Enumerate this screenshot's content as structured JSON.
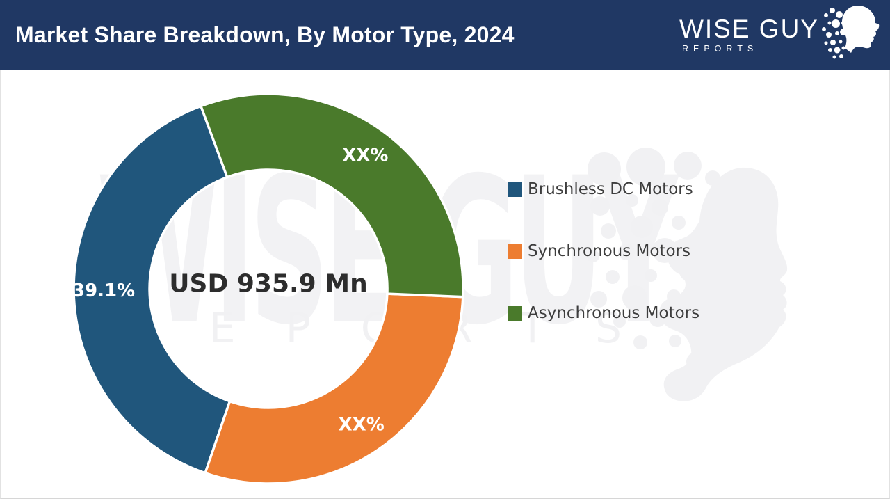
{
  "header": {
    "title": "Market Share Breakdown, By Motor Type, 2024",
    "logo": {
      "wordmark": "WISE GUY",
      "subtext": "REPORTS"
    }
  },
  "watermark": {
    "line1": "WISE GUY",
    "line2": "REPORTS"
  },
  "chart_data": {
    "type": "pie",
    "donut": true,
    "title": "Market Share Breakdown, By Motor Type, 2024",
    "center_label": "USD 935.9 Mn",
    "start_angle_deg": 110.3,
    "direction": "counterclockwise",
    "inner_radius_ratio": 0.61,
    "legend_position": "right",
    "segments": [
      {
        "label": "Brushless DC Motors",
        "value_pct": 39.1,
        "data_label": "39.1%",
        "color": "#20567C"
      },
      {
        "label": "Synchronous Motors",
        "value_pct": 29.6,
        "data_label": "XX%",
        "color": "#ED7D31"
      },
      {
        "label": "Asynchronous Motors",
        "value_pct": 31.3,
        "data_label": "XX%",
        "color": "#4A7A2B"
      }
    ]
  },
  "colors": {
    "header_bg": "#203864",
    "title_text": "#FFFFFF",
    "center_text": "#2D2D2D",
    "legend_text": "#3D3D3D",
    "slice_label_text": "#FFFFFF",
    "slice_gap": "#FFFFFF",
    "watermark": "#F2F2F4",
    "background": "#FFFFFF"
  }
}
